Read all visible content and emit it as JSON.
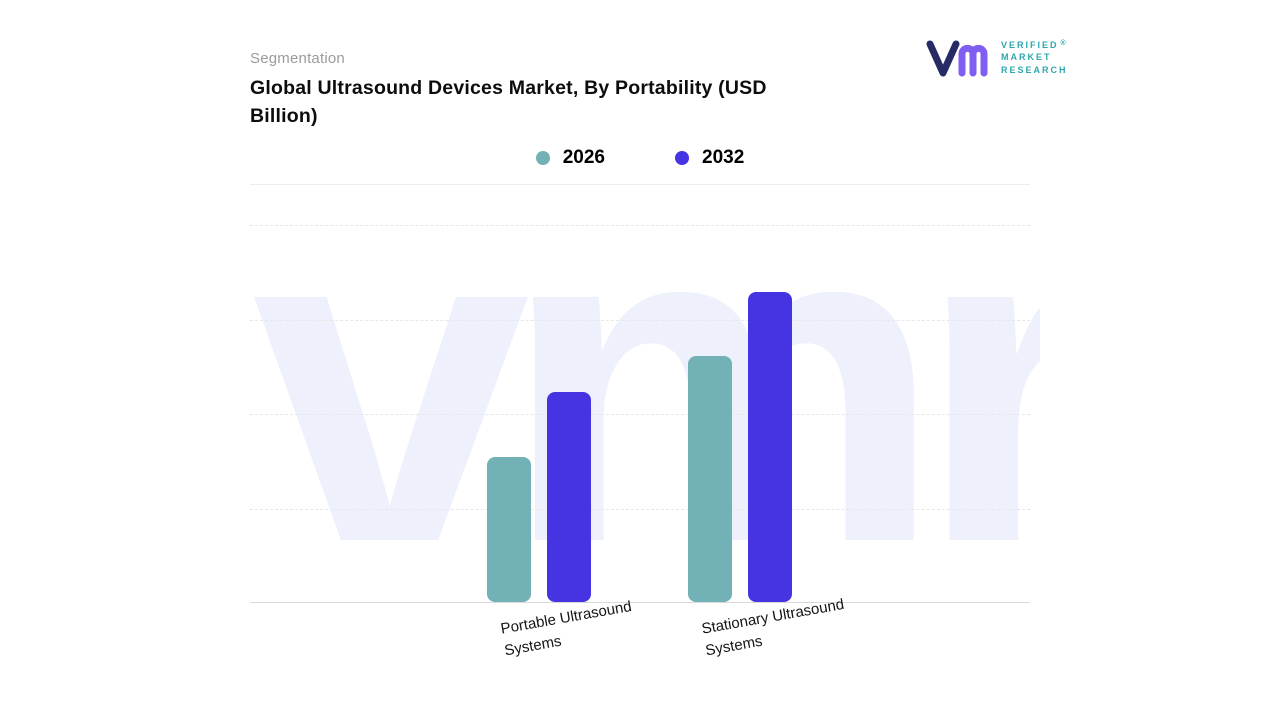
{
  "header": {
    "eyebrow": "Segmentation",
    "title_lines": [
      "Global Ultrasound Devices Market, By Portability (USD",
      "Billion)"
    ]
  },
  "logo": {
    "lines": [
      "VERIFIED",
      "MARKET",
      "RESEARCH"
    ],
    "registered": "®",
    "text_color": "#2fa7ac",
    "v_color": "#262b66",
    "m_color": "#7e5ff2"
  },
  "legend": [
    {
      "label": "2026",
      "color": "#72b1b5"
    },
    {
      "label": "2032",
      "color": "#4634e3"
    }
  ],
  "watermark": {
    "text": "vmr",
    "color": "#eef0fb"
  },
  "chart_data": {
    "type": "bar",
    "title": "Global Ultrasound Devices Market, By Portability (USD Billion)",
    "categories": [
      "Portable Ultrasound Systems",
      "Stationary Ultrasound Systems"
    ],
    "series": [
      {
        "name": "2026",
        "color": "#72b1b5",
        "values": [
          38.4,
          65.1
        ]
      },
      {
        "name": "2032",
        "color": "#4634e3",
        "values": [
          55.6,
          82.0
        ]
      }
    ],
    "xlabel": "",
    "ylabel": "",
    "value_note": "No numeric axis or data labels are visible; values are relative bar heights as % of plot height",
    "grid": "horizontal dashed, 4 lines",
    "legend_position": "top-center",
    "ylim_labels_visible": false
  }
}
